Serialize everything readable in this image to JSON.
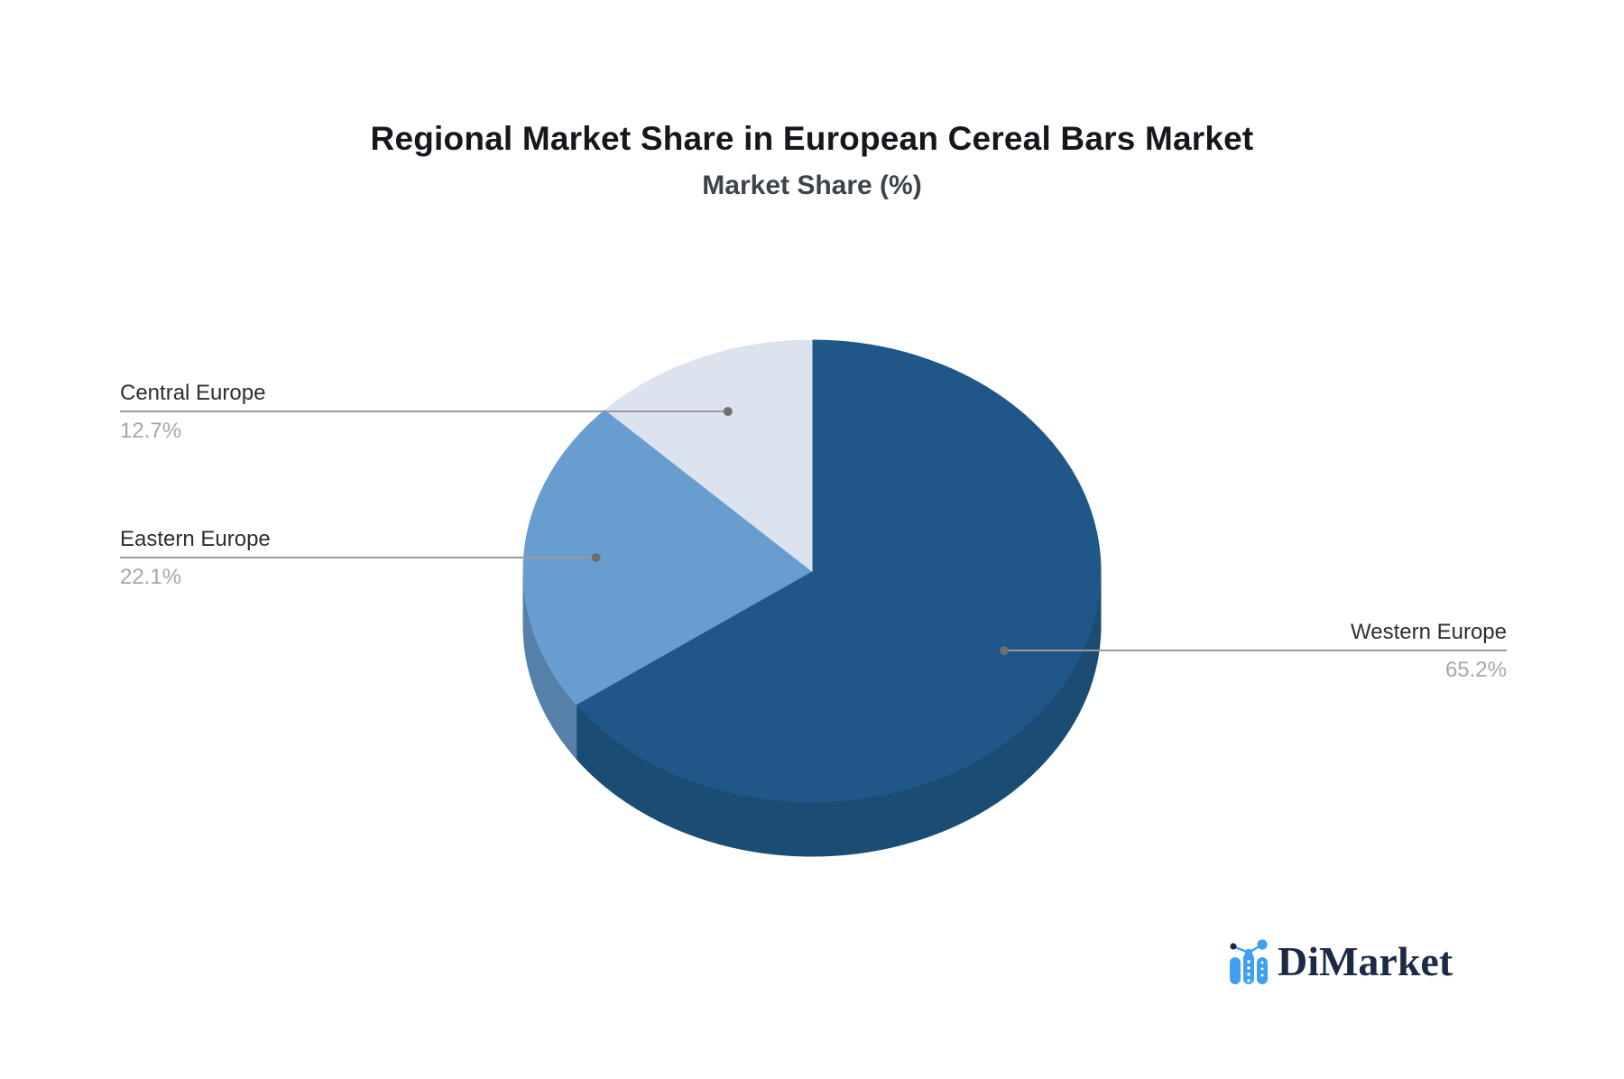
{
  "page": {
    "background": "#ffffff"
  },
  "chart_data": {
    "type": "pie",
    "title": "Regional Market Share in European Cereal Bars Market",
    "subtitle": "Market Share (%)",
    "unit": "%",
    "start_angle_deg": 0,
    "direction": "clockwise",
    "legend": "none",
    "is_3d": true,
    "slices": [
      {
        "name": "Western Europe",
        "value": 65.2,
        "label": "65.2%",
        "color": "#1e5788",
        "side_color": "#1a4c74",
        "label_side": "right"
      },
      {
        "name": "Eastern Europe",
        "value": 22.1,
        "label": "22.1%",
        "color": "#689dd0",
        "side_color": "#5580a8",
        "label_side": "left"
      },
      {
        "name": "Central Europe",
        "value": 12.7,
        "label": "12.7%",
        "color": "#dde3ee",
        "side_color": "#c2cddd",
        "label_side": "left"
      }
    ],
    "label_style": {
      "name_color": "#2e2e2e",
      "value_color": "#a7a7a7",
      "line_color": "#9b9b9b",
      "dot_color": "#6f6f6f"
    }
  },
  "branding": {
    "logo_text": "DiMarket",
    "logo_icon": "bar-chart-logo-icon",
    "logo_text_color": "#1d2a46",
    "logo_accent_color": "#419ff2"
  }
}
